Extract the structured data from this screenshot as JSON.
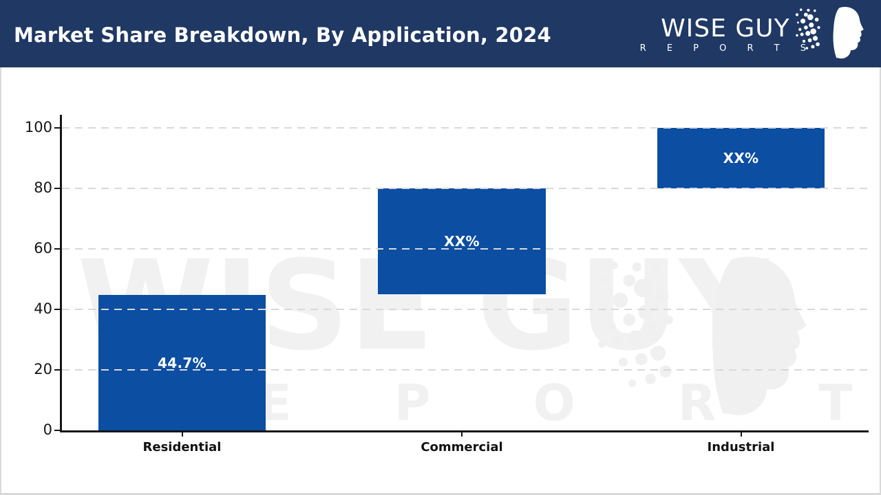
{
  "header": {
    "title": "Market Share Breakdown, By Application, 2024",
    "logo": {
      "line1": "WISE GUY",
      "line2": "R E P O R T S"
    }
  },
  "watermark": {
    "line1": "WISE GUY",
    "line2": "R E P O R T S"
  },
  "colors": {
    "header_bg": "#1f3864",
    "bar": "#0b4ea2",
    "bar_label": "#ffffff",
    "grid": "#d9d9d9",
    "axis": "#161616",
    "watermark": "#f1f1f2"
  },
  "chart_data": {
    "type": "bar",
    "subtype": "waterfall",
    "title": "Market Share Breakdown, By Application, 2024",
    "categories": [
      "Residential",
      "Commercial",
      "Industrial"
    ],
    "series": [
      {
        "name": "Market Share",
        "segments": [
          {
            "category": "Residential",
            "start": 0,
            "end": 44.7,
            "label": "44.7%"
          },
          {
            "category": "Commercial",
            "start": 45,
            "end": 80,
            "label": "XX%"
          },
          {
            "category": "Industrial",
            "start": 80,
            "end": 100,
            "label": "XX%"
          }
        ]
      }
    ],
    "yticks": [
      0,
      20,
      40,
      60,
      80,
      100
    ],
    "ylim": [
      0,
      105
    ],
    "grid": "dashed-horizontal",
    "legend": "none"
  }
}
